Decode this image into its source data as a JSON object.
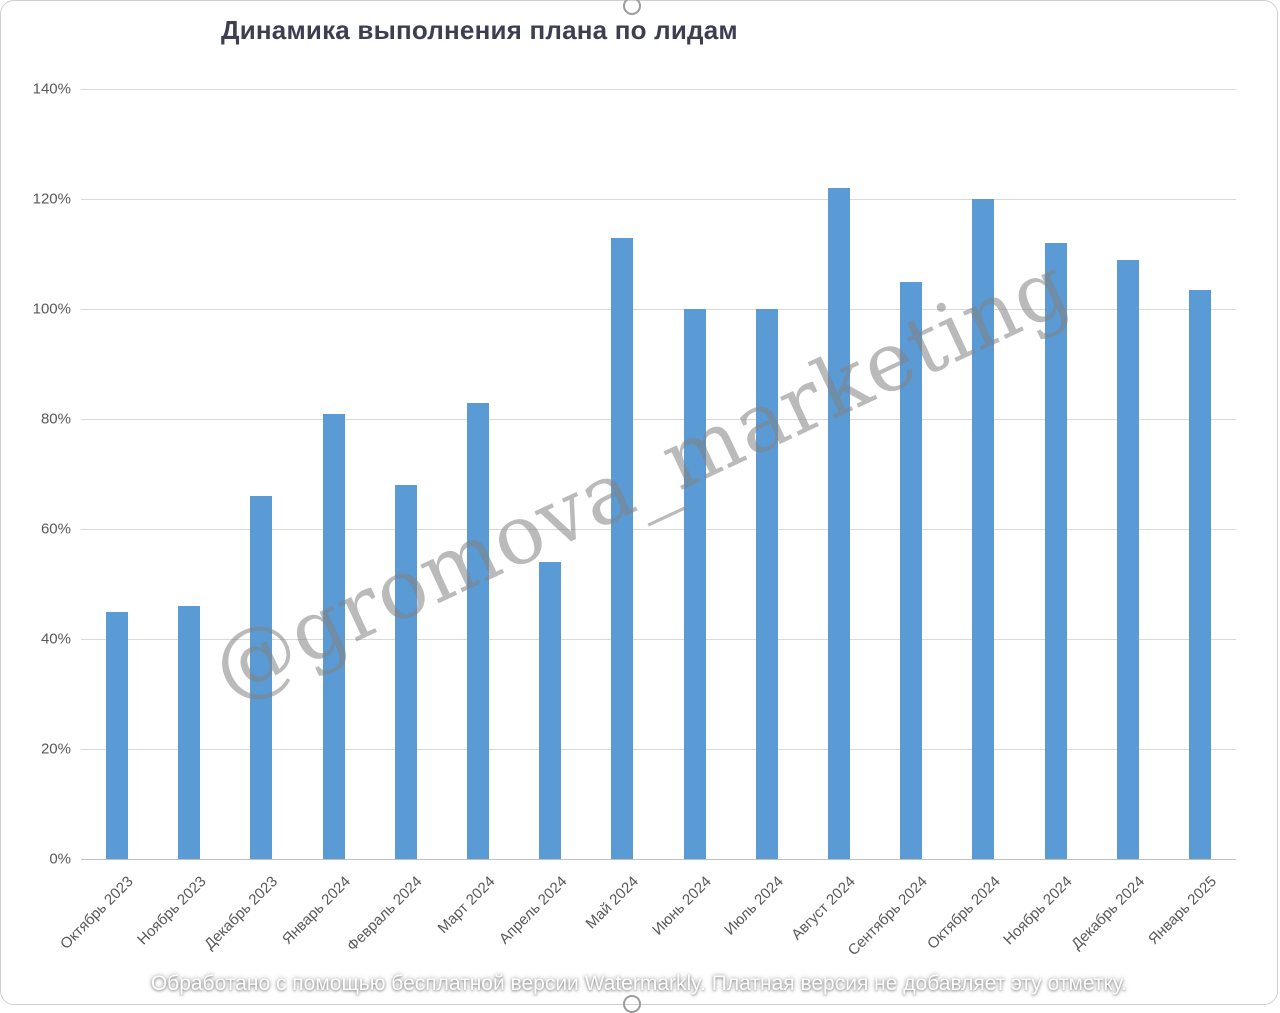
{
  "title": "Динамика выполнения плана по лидам",
  "watermark": {
    "diagonal_text": "@gromova_marketing",
    "footer_text": "Обработано с помощью бесплатной версии Watermarkly. Платная версия не добавляет эту отметку."
  },
  "chart_data": {
    "type": "bar",
    "title": "Динамика выполнения плана по лидам",
    "categories": [
      "Октябрь 2023",
      "Ноябрь 2023",
      "Декабрь 2023",
      "Январь 2024",
      "Февраль 2024",
      "Март 2024",
      "Апрель 2024",
      "Май 2024",
      "Июнь 2024",
      "Июль 2024",
      "Август 2024",
      "Сентябрь 2024",
      "Октябрь 2024",
      "Ноябрь 2024",
      "Декабрь 2024",
      "Январь 2025"
    ],
    "values": [
      45,
      46,
      66,
      81,
      68,
      83,
      54,
      113,
      100,
      100,
      122,
      105,
      120,
      112,
      109,
      103.5
    ],
    "xlabel": "",
    "ylabel": "",
    "ylim": [
      0,
      140
    ],
    "ytick_values": [
      0,
      20,
      40,
      60,
      80,
      100,
      120,
      140
    ],
    "ytick_labels": [
      "0%",
      "20%",
      "40%",
      "60%",
      "80%",
      "100%",
      "120%",
      "140%"
    ],
    "bar_color": "#5B9BD5",
    "grid": true,
    "legend": false
  }
}
